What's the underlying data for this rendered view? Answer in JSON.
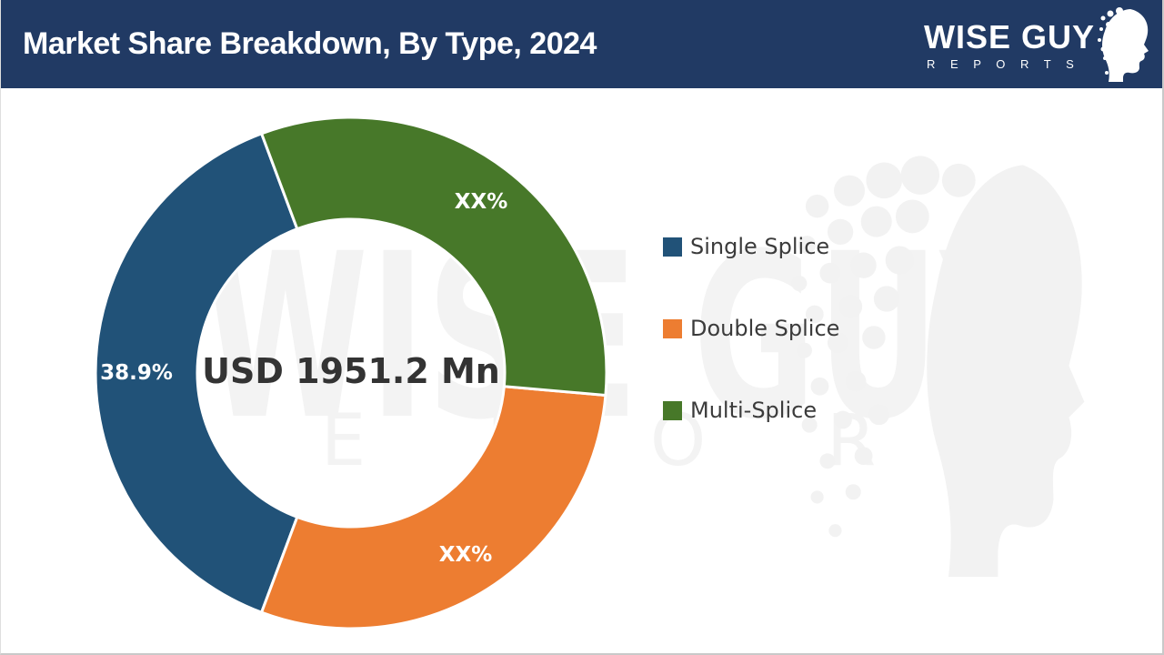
{
  "header": {
    "title": "Market Share Breakdown, By Type, 2024",
    "bg_color": "#213A64",
    "logo": {
      "line1": "WISE GUY",
      "line2": "R E P O R T S",
      "face_icon": "face-profile-dots"
    }
  },
  "watermark": {
    "line1": "WISE GUY",
    "line2": "R E P O R T S",
    "color": "#F3F3F3"
  },
  "chart_data": {
    "type": "donut",
    "title": "Market Share Breakdown, By Type, 2024",
    "center_label": "USD 1951.2 Mn",
    "legend_position": "right",
    "hole_ratio": 0.6,
    "segments": [
      {
        "name": "Single Splice",
        "display_label": "38.9%",
        "percent_shown": "38.9%",
        "color": "#215278",
        "angle_start_deg": 110.5,
        "angle_end_deg": 249.5
      },
      {
        "name": "Double Splice",
        "display_label": "XX%",
        "percent_shown": "XX%",
        "color": "#ED7D31",
        "angle_start_deg": 249.5,
        "angle_end_deg": 355.0
      },
      {
        "name": "Multi-Splice",
        "display_label": "XX%",
        "percent_shown": "XX%",
        "color": "#477829",
        "angle_start_deg": -5.0,
        "angle_end_deg": 110.5
      }
    ]
  }
}
